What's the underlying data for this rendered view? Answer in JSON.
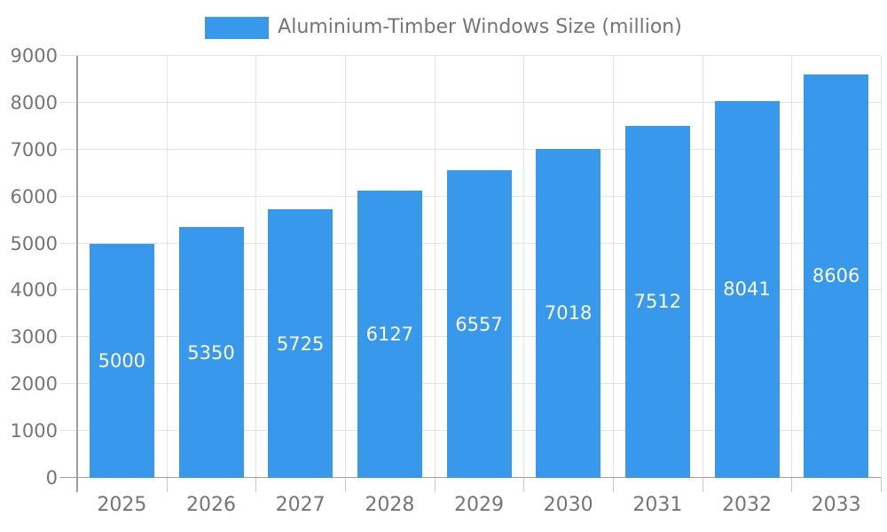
{
  "chart_data": {
    "type": "bar",
    "legend_label": "Aluminium-Timber Windows Size (million)",
    "categories": [
      "2025",
      "2026",
      "2027",
      "2028",
      "2029",
      "2030",
      "2031",
      "2032",
      "2033"
    ],
    "series": [
      {
        "name": "Aluminium-Timber Windows Size (million)",
        "values": [
          5000,
          5350,
          5725,
          6127,
          6557,
          7018,
          7512,
          8041,
          8606
        ]
      }
    ],
    "xlabel": "",
    "ylabel": "",
    "ylim": [
      0,
      9000
    ],
    "ytick_step": 1000,
    "grid": true,
    "legend_position": "top",
    "value_labels": "inside-center",
    "colors": {
      "bar": "#3898EC",
      "value_label": "#FFFFFF",
      "axis_line": "#9E9E9E",
      "tick": "#C9C9C9",
      "gridline": "#E3E3E3",
      "axis_text": "#757575"
    }
  }
}
